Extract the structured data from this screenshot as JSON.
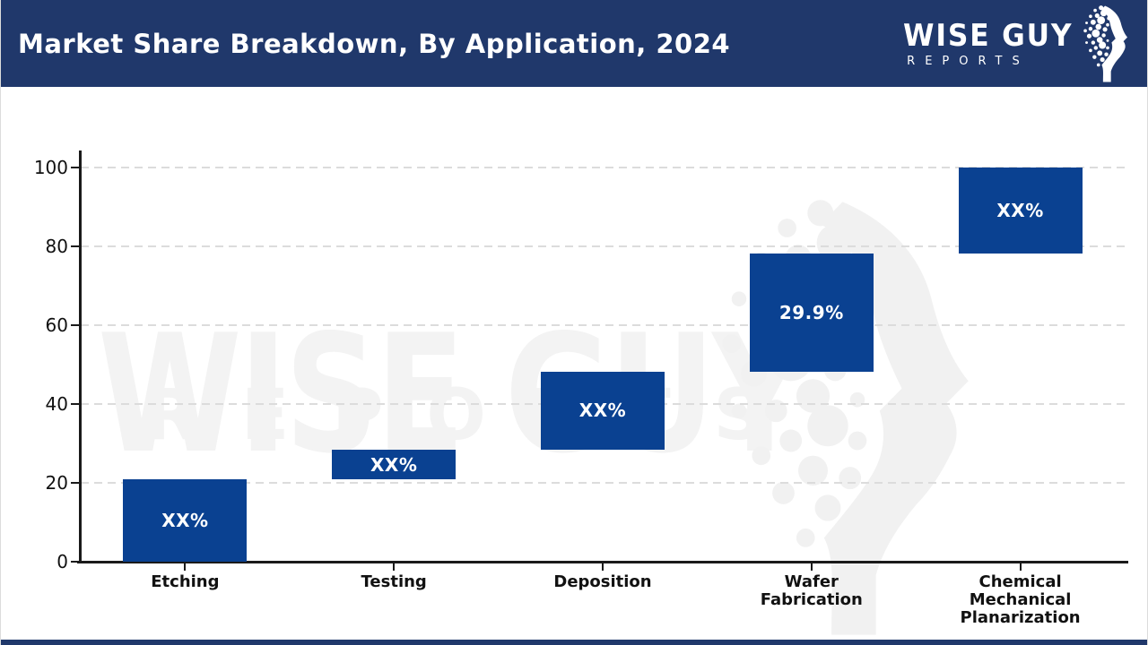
{
  "header": {
    "title": "Market Share Breakdown, By Application, 2024"
  },
  "logo": {
    "wordmark": "WISE GUY",
    "sub": "REPORTS"
  },
  "watermark": {
    "wordmark": "WISE GUY",
    "sub": "REPORTS"
  },
  "colors": {
    "header_bg": "#20386b",
    "bar": "#0a4191",
    "bar_label": "#ffffff",
    "footer_bg": "#20386b"
  },
  "chart_data": {
    "type": "bar",
    "subtype": "waterfall",
    "title": "Market Share Breakdown, By Application, 2024",
    "xlabel": "",
    "ylabel": "",
    "ylim": [
      0,
      100
    ],
    "yticks": [
      0,
      20,
      40,
      60,
      80,
      100
    ],
    "grid": "horizontal-dashed",
    "legend": "none",
    "categories": [
      "Etching",
      "Testing",
      "Deposition",
      "Wafer Fabrication",
      "Chemical Mechanical Planarization"
    ],
    "segments": [
      {
        "category": "Etching",
        "start": 0,
        "end": 20.9,
        "value": 20.9,
        "label": "XX%"
      },
      {
        "category": "Testing",
        "start": 20.9,
        "end": 28.4,
        "value": 7.5,
        "label": "XX%"
      },
      {
        "category": "Deposition",
        "start": 28.4,
        "end": 48.2,
        "value": 19.8,
        "label": "XX%"
      },
      {
        "category": "Wafer Fabrication",
        "start": 48.2,
        "end": 78.1,
        "value": 29.9,
        "label": "29.9%"
      },
      {
        "category": "Chemical Mechanical Planarization",
        "start": 78.1,
        "end": 100,
        "value": 21.9,
        "label": "XX%"
      }
    ]
  }
}
